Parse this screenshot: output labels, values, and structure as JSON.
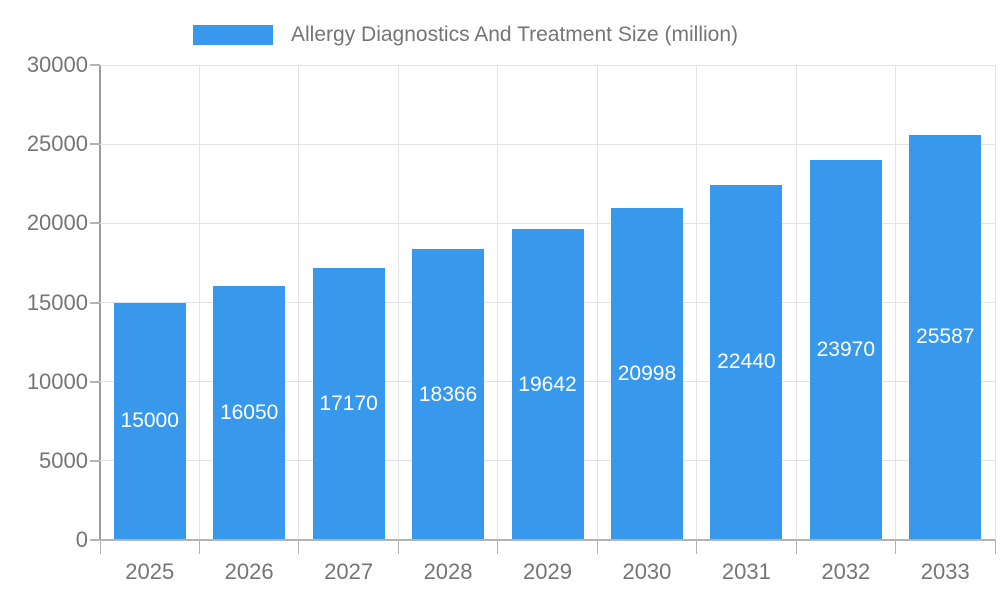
{
  "legend": {
    "label": "Allergy Diagnostics And Treatment Size (million)"
  },
  "chart_data": {
    "type": "bar",
    "title": "Allergy Diagnostics And Treatment Size (million)",
    "categories": [
      "2025",
      "2026",
      "2027",
      "2028",
      "2029",
      "2030",
      "2031",
      "2032",
      "2033"
    ],
    "values": [
      15000,
      16050,
      17170,
      18366,
      19642,
      20998,
      22440,
      23970,
      25587
    ],
    "value_labels": [
      "15000",
      "16050",
      "17170",
      "18366",
      "19642",
      "20998",
      "22440",
      "23970",
      "25587"
    ],
    "yticks": [
      0,
      5000,
      10000,
      15000,
      20000,
      25000,
      30000
    ],
    "ytick_labels": [
      "0",
      "5000",
      "10000",
      "15000",
      "20000",
      "25000",
      "30000"
    ],
    "ylim": [
      0,
      30000
    ],
    "xlabel": "",
    "ylabel": "",
    "grid": true,
    "legend_position": "top",
    "bar_color": "#3898ec",
    "bar_label_color": "#ffffff",
    "axis_text_color": "#757575",
    "grid_color": "#e3e3e3",
    "axis_line_color": "#b3b3b3"
  }
}
